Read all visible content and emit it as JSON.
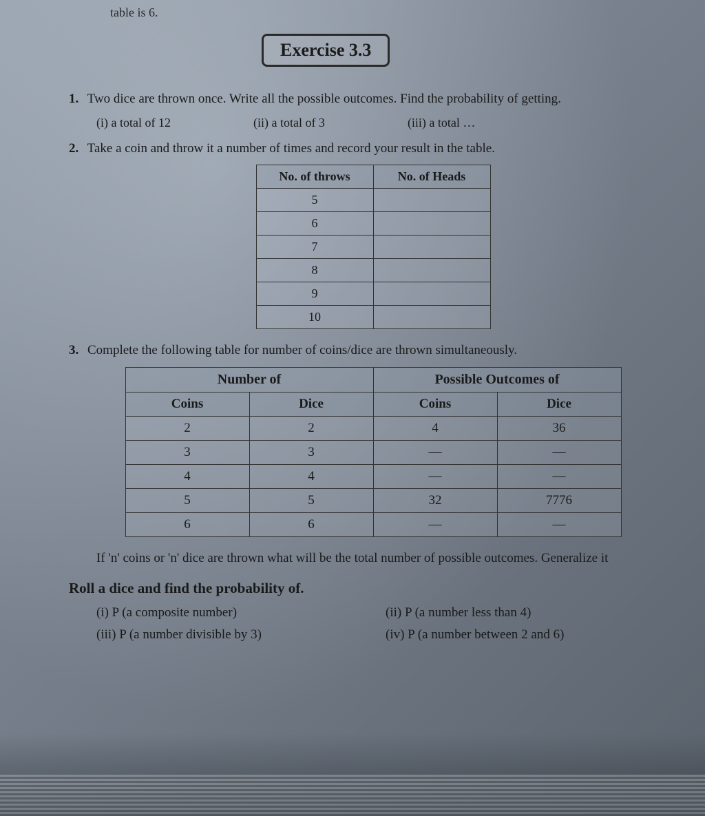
{
  "topNote": "table is 6.",
  "exerciseLabel": "Exercise 3.3",
  "q1": {
    "num": "1.",
    "text": "Two dice are thrown once. Write all the possible outcomes. Find the probability of getting.",
    "subs": {
      "i": "(i)  a total of 12",
      "ii": "(ii) a total of 3",
      "iii": "(iii)  a total …"
    }
  },
  "q2": {
    "num": "2.",
    "text": "Take a coin and throw it a number of times and record your result in the table.",
    "table": {
      "headers": [
        "No. of throws",
        "No. of Heads"
      ],
      "rows": [
        [
          "5",
          ""
        ],
        [
          "6",
          ""
        ],
        [
          "7",
          ""
        ],
        [
          "8",
          ""
        ],
        [
          "9",
          ""
        ],
        [
          "10",
          ""
        ]
      ]
    }
  },
  "q3": {
    "num": "3.",
    "text": "Complete the following table for number of coins/dice are thrown simultaneously.",
    "table": {
      "group1": "Number of",
      "group2": "Possible Outcomes of",
      "sub": [
        "Coins",
        "Dice",
        "Coins",
        "Dice"
      ],
      "rows": [
        [
          "2",
          "2",
          "4",
          "36"
        ],
        [
          "3",
          "3",
          "—",
          "—"
        ],
        [
          "4",
          "4",
          "—",
          "—"
        ],
        [
          "5",
          "5",
          "32",
          "7776"
        ],
        [
          "6",
          "6",
          "—",
          "—"
        ]
      ]
    },
    "generalize": "If 'n' coins or 'n' dice are thrown what will be the total number of possible outcomes. Generalize it"
  },
  "q4": {
    "title": "Roll a dice and find the probability of.",
    "subs": {
      "i": "(i)  P (a composite number)",
      "ii": "(ii)  P (a number less than 4)",
      "iii": "(iii)  P (a number divisible by 3)",
      "iv": "(iv)  P (a number between 2 and 6)"
    }
  }
}
